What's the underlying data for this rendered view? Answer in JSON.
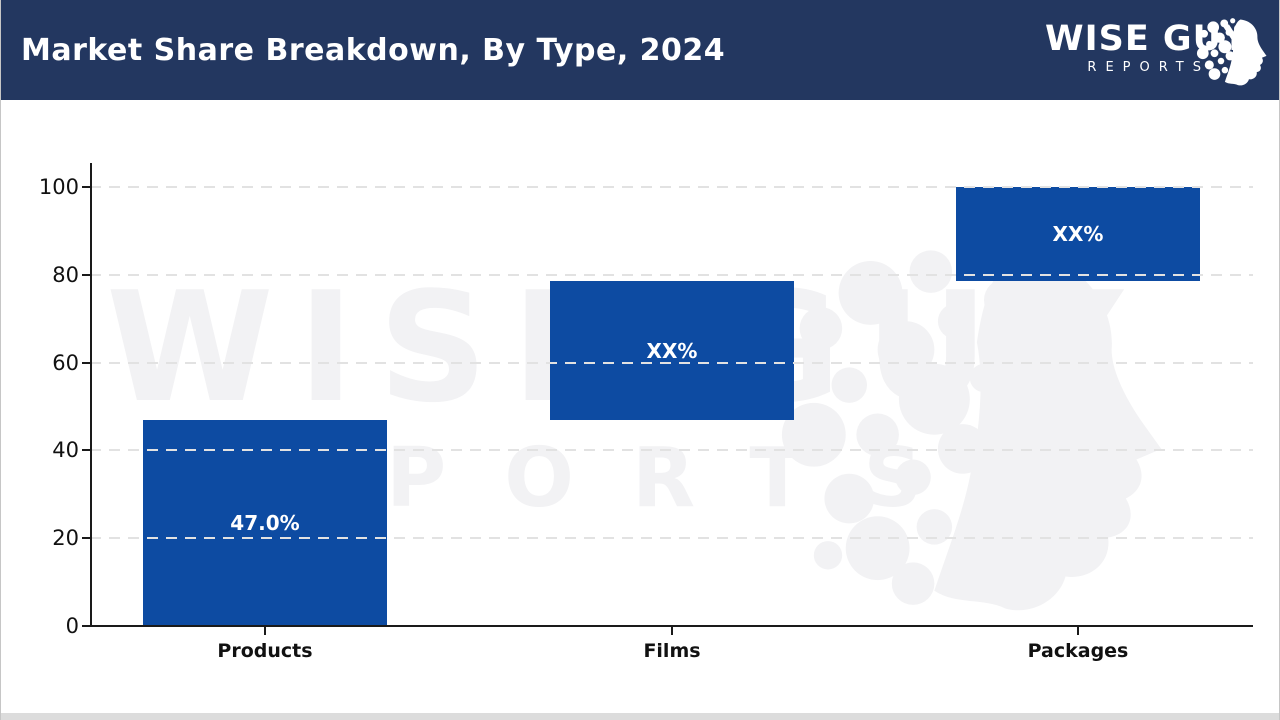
{
  "header": {
    "title": "Market Share Breakdown, By Type, 2024",
    "logo": {
      "line1": "WISE GUY",
      "line2": "REPORTS"
    }
  },
  "watermark": {
    "line1": "WISE GUY",
    "line2": "REPORTS"
  },
  "chart_data": {
    "type": "bar",
    "subtype": "floating-waterfall",
    "title": "Market Share Breakdown, By Type, 2024",
    "categories": [
      "Products",
      "Films",
      "Packages"
    ],
    "segments": [
      {
        "category": "Products",
        "base": 0,
        "top": 47.0,
        "label": "47.0%"
      },
      {
        "category": "Films",
        "base": 47.0,
        "top": 78.5,
        "label": "XX%"
      },
      {
        "category": "Packages",
        "base": 78.5,
        "top": 100.0,
        "label": "XX%"
      }
    ],
    "yticks": [
      0,
      20,
      40,
      60,
      80,
      100
    ],
    "ylim": [
      0,
      105
    ],
    "xlabel": "",
    "ylabel": "",
    "grid": "horizontal-dashed",
    "legend": "none",
    "colors": {
      "bar": "#0d4ba2",
      "bar_label": "#ffffff",
      "grid": "#e2e2e2",
      "axis": "#1a1a1a",
      "header_bg": "#233760",
      "watermark": "#f2f2f4"
    }
  }
}
